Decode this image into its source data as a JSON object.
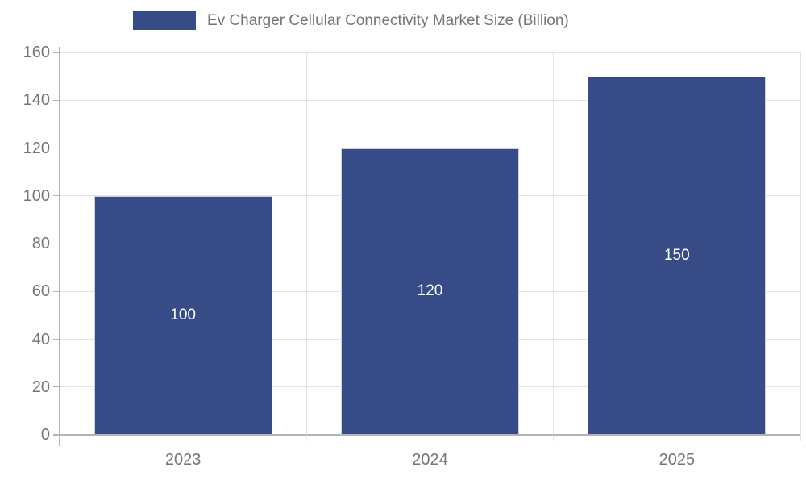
{
  "chart_data": {
    "type": "bar",
    "title": "Ev Charger Cellular Connectivity Market Size (Billion)",
    "categories": [
      "2023",
      "2024",
      "2025"
    ],
    "values": [
      100,
      120,
      150
    ],
    "series": [
      {
        "name": "Ev Charger Cellular Connectivity Market Size (Billion)",
        "values": [
          100,
          120,
          150
        ]
      }
    ],
    "bar_value_labels": [
      "100",
      "120",
      "150"
    ],
    "ylim": [
      0,
      160
    ],
    "ytick_step": 20,
    "yticks": [
      0,
      20,
      40,
      60,
      80,
      100,
      120,
      140,
      160
    ],
    "xlabel": "",
    "ylabel": "",
    "grid": true,
    "legend_position": "top-center",
    "colors": {
      "bar": "#374b87",
      "bar_edge": "#e8eaf0",
      "gridline": "#e2e2e2",
      "axis": "#b0b3b8",
      "tick_text": "#757575",
      "legend_text": "#757575",
      "value_label": "#ffffff",
      "background": "#ffffff"
    }
  },
  "legend": {
    "label": "Ev Charger Cellular Connectivity Market Size (Billion)",
    "swatch": "series-color-swatch"
  }
}
